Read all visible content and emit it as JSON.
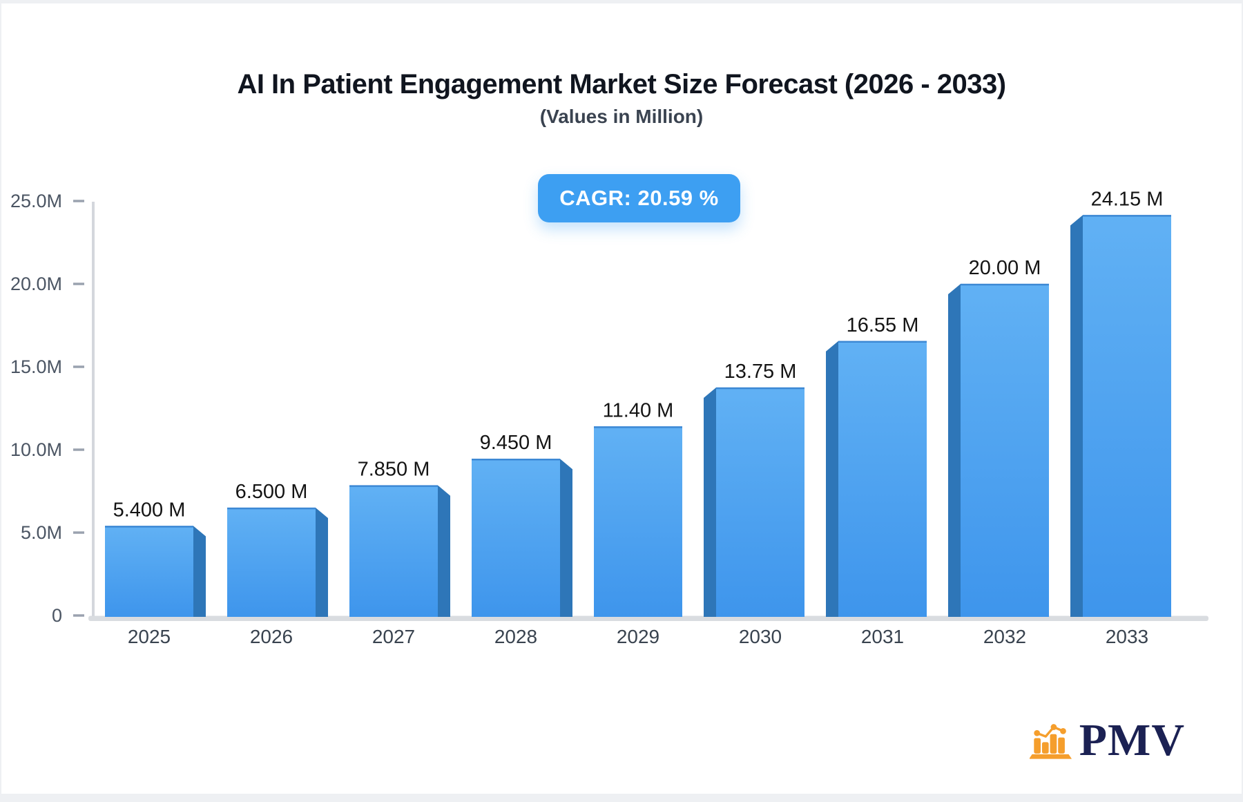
{
  "title": "AI In Patient Engagement Market Size Forecast (2026 - 2033)",
  "subtitle": "(Values in Million)",
  "badge": {
    "label": "CAGR: 20.59 %",
    "color": "#3d9ff2",
    "text_color": "#ffffff"
  },
  "chart_data": {
    "type": "bar",
    "title": "AI In Patient Engagement Market Size Forecast (2026 - 2033)",
    "subtitle": "(Values in Million)",
    "unit": "Million",
    "categories": [
      "2025",
      "2026",
      "2027",
      "2028",
      "2029",
      "2030",
      "2031",
      "2032",
      "2033"
    ],
    "values": [
      5.4,
      6.5,
      7.85,
      9.45,
      11.4,
      13.75,
      16.55,
      20.0,
      24.15
    ],
    "value_labels": [
      "5.400 M",
      "6.500 M",
      "7.850 M",
      "9.450 M",
      "11.40 M",
      "13.75 M",
      "16.55 M",
      "20.00 M",
      "24.15 M"
    ],
    "xlabel": "",
    "ylabel": "",
    "ylim": [
      0,
      25
    ],
    "yticks": [
      {
        "value": 25,
        "label": "25.0M"
      },
      {
        "value": 20,
        "label": "20.0M"
      },
      {
        "value": 15,
        "label": "15.0M"
      },
      {
        "value": 10,
        "label": "10.0M"
      },
      {
        "value": 5,
        "label": "5.0M"
      },
      {
        "value": 0,
        "label": "0"
      }
    ],
    "grid": false,
    "legend": false,
    "style_3d": true,
    "colors": {
      "bar_face_top": "#61b1f4",
      "bar_face_bottom": "#3e95ec",
      "bar_top_edge": "#3c88d4",
      "bar_side": "#2e76b8",
      "axis_line": "#d4d7dd",
      "baseline": "#d9dce0",
      "tick": "#9aa2af",
      "tick_label": "#4b5563",
      "x_label": "#39434f",
      "value_label": "#141414"
    }
  },
  "logo": {
    "text": "PMV",
    "text_color": "#1b2153",
    "icon": "bar-chart-logo-icon",
    "icon_color": "#f59e2c"
  }
}
